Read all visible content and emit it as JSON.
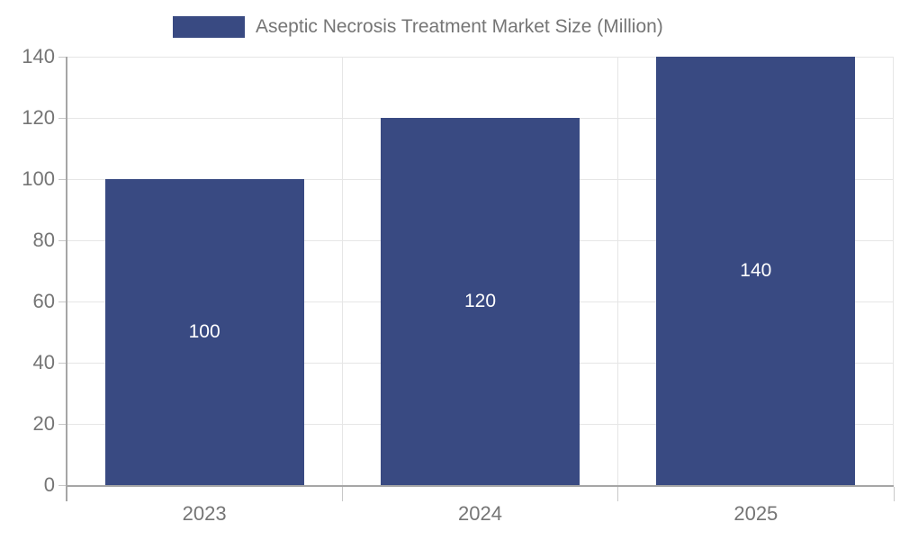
{
  "chart_data": {
    "type": "bar",
    "title": "Aseptic Necrosis Treatment Market Size (Million)",
    "categories": [
      "2023",
      "2024",
      "2025"
    ],
    "values": [
      100,
      120,
      140
    ],
    "series": [
      {
        "name": "Aseptic Necrosis Treatment Market Size (Million)",
        "values": [
          100,
          120,
          140
        ]
      }
    ],
    "xlabel": "",
    "ylabel": "",
    "ylim": [
      0,
      140
    ],
    "yticks": [
      0,
      20,
      40,
      60,
      80,
      100,
      120,
      140
    ],
    "grid": true,
    "legend_position": "top",
    "data_labels_shown": true
  },
  "legend": {
    "label": "Aseptic Necrosis Treatment Market Size (Million)"
  },
  "style": {
    "bar_color": "#394A82",
    "data_label_color": "#FFFFFF",
    "axis_text_color": "#757575",
    "grid_color": "#E6E6E6",
    "axis_line_color": "#A6A6A6",
    "tick_color": "#C8C8C8",
    "background": "#FFFFFF"
  }
}
